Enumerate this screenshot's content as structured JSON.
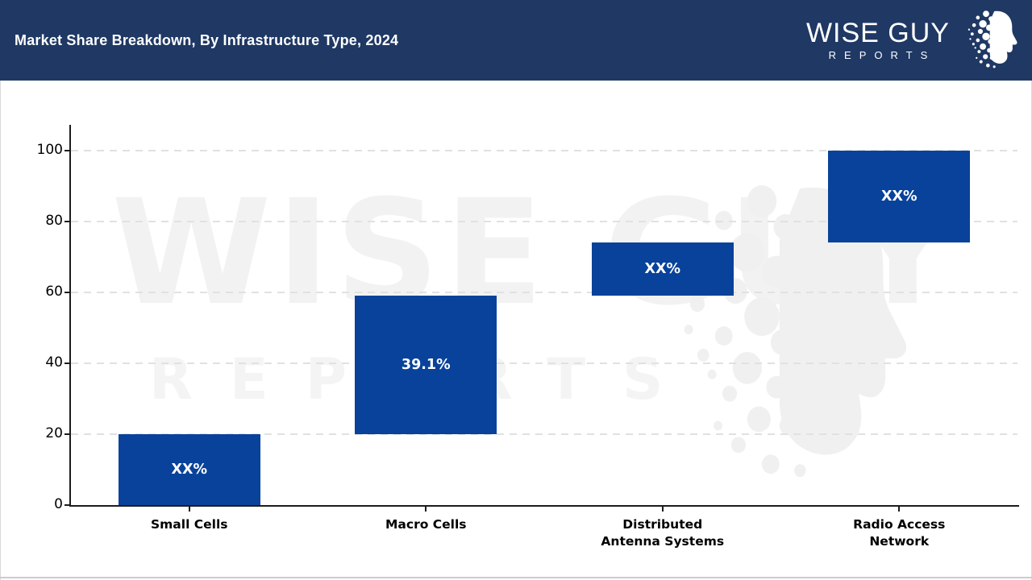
{
  "header": {
    "title": "Market Share Breakdown, By Infrastructure Type, 2024",
    "bg_color": "#1f3864",
    "logo": {
      "line1": "WISE GUY",
      "line2": "REPORTS"
    }
  },
  "watermark": {
    "line1": "WISE GUY",
    "line2": "REPORTS"
  },
  "chart_data": {
    "type": "bar",
    "variant": "waterfall",
    "title": "Market Share Breakdown, By Infrastructure Type, 2024",
    "categories": [
      "Small Cells",
      "Macro Cells",
      "Distributed\nAntenna Systems",
      "Radio Access\nNetwork"
    ],
    "series": [
      {
        "name": "Market Share",
        "segments": [
          {
            "category": "Small Cells",
            "start": 0,
            "end": 20,
            "label": "XX%"
          },
          {
            "category": "Macro Cells",
            "start": 20,
            "end": 59.1,
            "label": "39.1%"
          },
          {
            "category": "Distributed Antenna Systems",
            "start": 59.1,
            "end": 74.1,
            "label": "XX%"
          },
          {
            "category": "Radio Access Network",
            "start": 74.1,
            "end": 100,
            "label": "XX%"
          }
        ]
      }
    ],
    "xlabel": "",
    "ylabel": "",
    "ylim": [
      0,
      100
    ],
    "yticks": [
      0,
      20,
      40,
      60,
      80,
      100
    ],
    "grid": "horizontal-dashed",
    "legend": "none",
    "bar_color": "#08429a",
    "bar_label_color": "#ffffff",
    "axis_color": "#1c1c1c",
    "grid_color": "#e1e1e1"
  }
}
